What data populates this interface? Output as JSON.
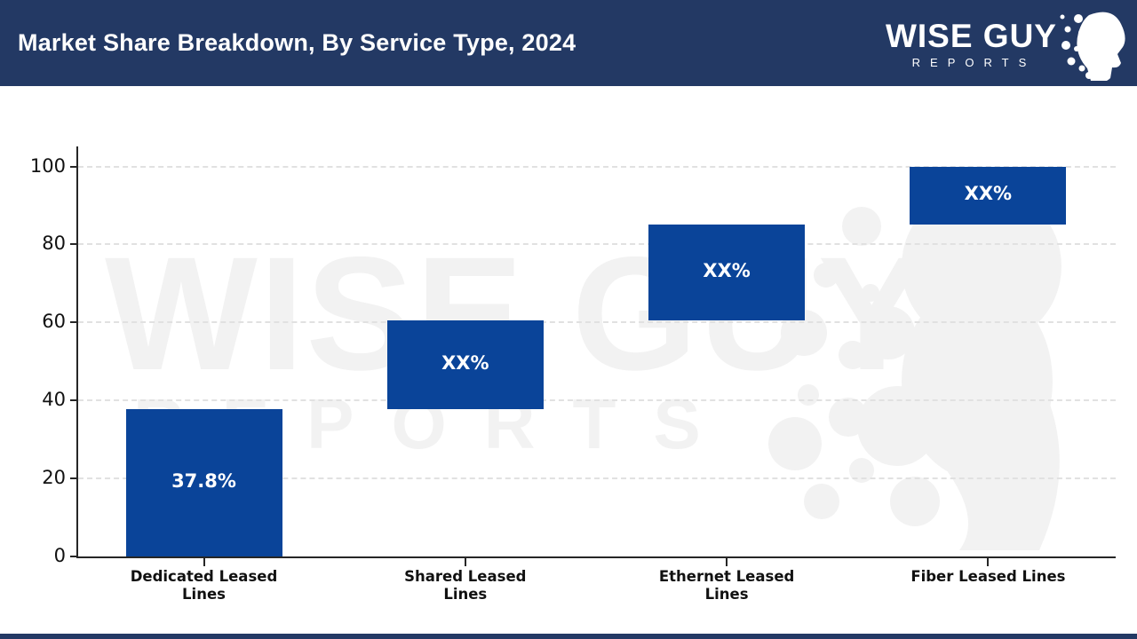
{
  "header": {
    "title": "Market Share Breakdown, By Service Type, 2024",
    "bg_color": "#233964",
    "logo": {
      "line1": "WISE GUY",
      "line2": "REPORTS"
    }
  },
  "watermark": {
    "line1": "WISE GUY",
    "line2": "REPORTS"
  },
  "chart_data": {
    "type": "bar",
    "variant": "waterfall",
    "title": "Market Share Breakdown, By Service Type, 2024",
    "categories": [
      "Dedicated Leased Lines",
      "Shared Leased Lines",
      "Ethernet Leased Lines",
      "Fiber Leased Lines"
    ],
    "category_lines": [
      [
        "Dedicated Leased",
        "Lines"
      ],
      [
        "Shared Leased",
        "Lines"
      ],
      [
        "Ethernet Leased",
        "Lines"
      ],
      [
        "Fiber Leased Lines"
      ]
    ],
    "segments": [
      {
        "category": "Dedicated Leased Lines",
        "start": 0,
        "end": 37.8,
        "label": "37.8%"
      },
      {
        "category": "Shared Leased Lines",
        "start": 37.8,
        "end": 60.5,
        "label": "XX%"
      },
      {
        "category": "Ethernet Leased Lines",
        "start": 60.5,
        "end": 85,
        "label": "XX%"
      },
      {
        "category": "Fiber Leased Lines",
        "start": 85,
        "end": 100,
        "label": "XX%"
      }
    ],
    "xlabel": "",
    "ylabel": "",
    "ylim": [
      0,
      100
    ],
    "yticks": [
      0,
      20,
      40,
      60,
      80,
      100
    ],
    "grid": "horizontal-dashed",
    "legend": "none",
    "bar_color": "#0a4499",
    "bar_label_color": "#ffffff"
  }
}
